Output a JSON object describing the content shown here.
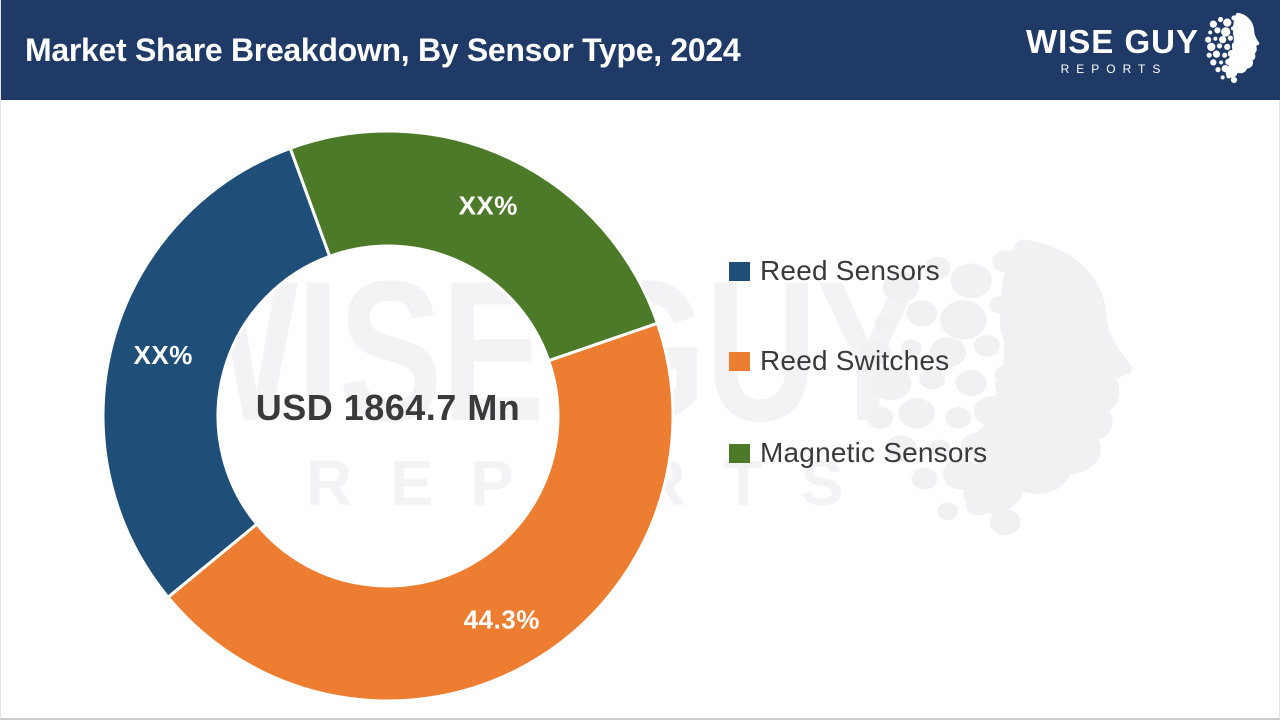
{
  "header": {
    "title": "Market Share Breakdown, By Sensor Type, 2024"
  },
  "logo": {
    "line1": "WISE GUY",
    "line2": "REPORTS"
  },
  "watermark": {
    "line1": "WISE GUY",
    "line2": "REPORTS"
  },
  "chart_data": {
    "type": "pie",
    "subtype": "donut",
    "title": "Market Share Breakdown, By Sensor Type, 2024",
    "center_label": "USD 1864.7 Mn",
    "units": "percent of market share",
    "start_angle_deg_clockwise_from_top": 230.5,
    "segments": [
      {
        "name": "Reed Sensors",
        "display_label": "XX%",
        "value_pct": 30.4,
        "color": "#1F4E79"
      },
      {
        "name": "Magnetic Sensors",
        "display_label": "XX%",
        "value_pct": 25.3,
        "color": "#4C7A29"
      },
      {
        "name": "Reed Switches",
        "display_label": "44.3%",
        "value_pct": 44.3,
        "color": "#ED7D31"
      }
    ],
    "legend_position": "right",
    "notes": "XX% values are masked placeholders in source image; percentages estimated from wedge angles"
  },
  "legend": {
    "items": [
      {
        "label": "Reed Sensors",
        "color": "#1F4E79"
      },
      {
        "label": "Reed Switches",
        "color": "#ED7D31"
      },
      {
        "label": "Magnetic Sensors",
        "color": "#4C7A29"
      }
    ]
  },
  "colors": {
    "header_bg": "#1F3A67",
    "center_text": "#3A3A3A",
    "legend_text": "#3A3A3A",
    "watermark": "#F3F3F5",
    "bottom_border": "#CCCCCC"
  }
}
